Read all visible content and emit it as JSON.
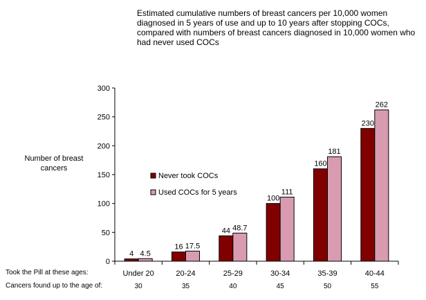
{
  "chart_data": {
    "type": "bar",
    "title_lines": [
      "Estimated cumulative numbers of breast cancers per 10,000 women",
      "diagnosed in 5 years of use and up to 10 years after stopping COCs,",
      "compared with numbers of breast cancers diagnosed in 10,000 women who",
      "had never used COCs"
    ],
    "ylabel_lines": [
      "Number of breast",
      "cancers"
    ],
    "ylim": [
      0,
      300
    ],
    "yticks": [
      "0",
      "50",
      "100",
      "150",
      "200",
      "250",
      "300"
    ],
    "categories": [
      "Under 20",
      "20-24",
      "25-29",
      "30-34",
      "35-39",
      "40-44"
    ],
    "series": [
      {
        "name": "Never took COCs",
        "values": [
          4,
          16,
          44,
          100,
          160,
          230
        ],
        "labels": [
          "4",
          "16",
          "44",
          "100",
          "160",
          "230"
        ],
        "color": "#800000"
      },
      {
        "name": "Used COCs for 5 years",
        "values": [
          4.5,
          17.5,
          48.7,
          111,
          181,
          262
        ],
        "labels": [
          "4.5",
          "17.5",
          "48.7",
          "111",
          "181",
          "262"
        ],
        "color": "#d99bb0"
      }
    ],
    "legend_position": "center-left",
    "grid": false,
    "row_label_age": "Took the Pill at these ages:",
    "row_label_found": "Cancers found up to the age of:",
    "found_ages": [
      "30",
      "35",
      "40",
      "45",
      "50",
      "55"
    ]
  }
}
